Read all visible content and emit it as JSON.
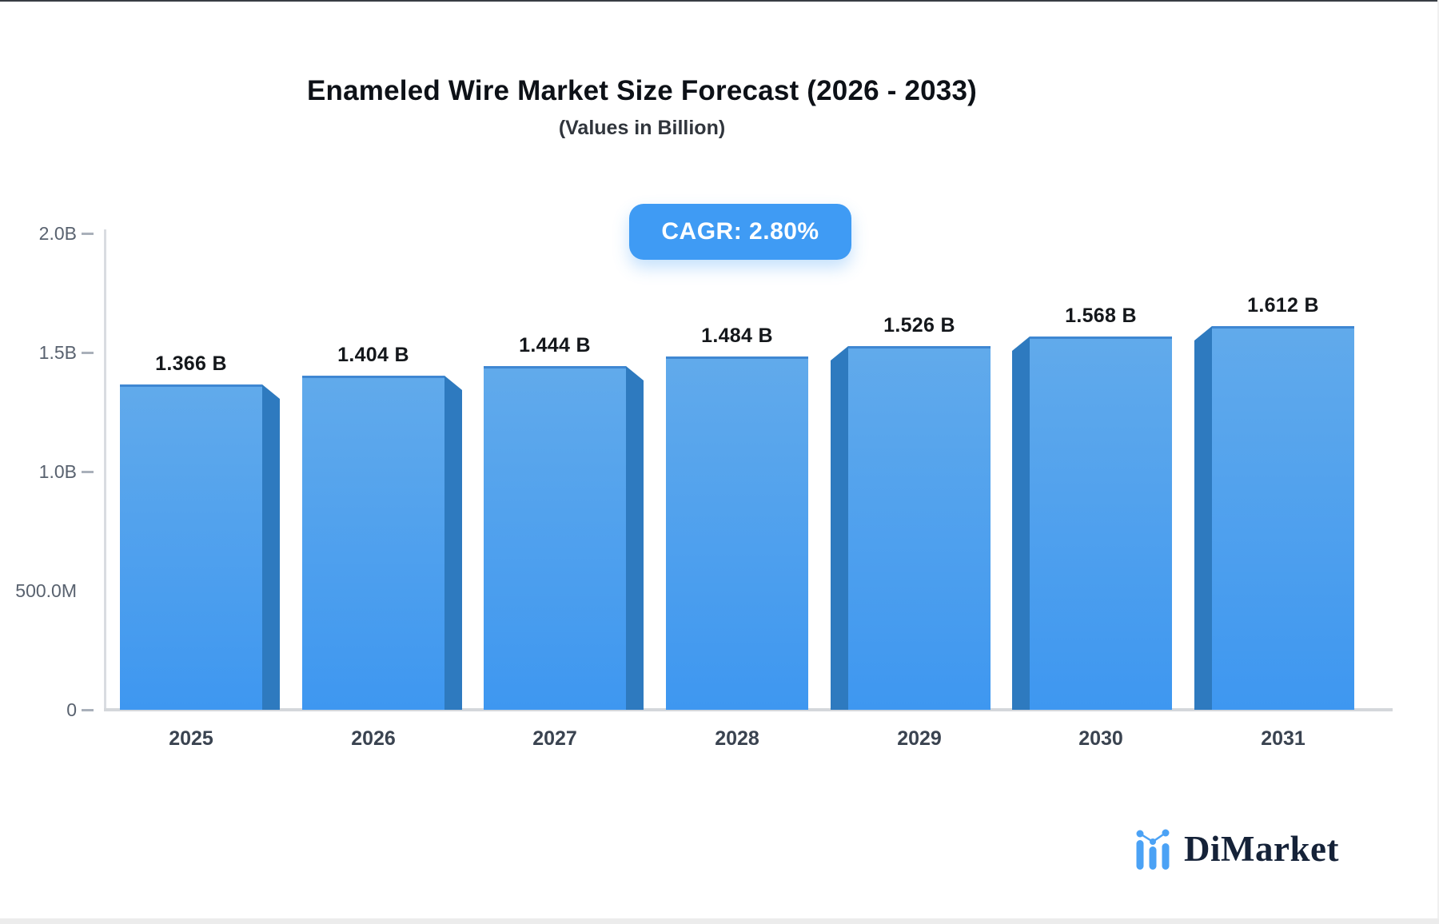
{
  "page": {
    "background": "#ffffff",
    "top_border_color": "#383d44",
    "right_border_color": "#f0f0f0",
    "bottom_strip_color": "#ececec"
  },
  "header": {
    "title": "Enameled Wire Market Size Forecast (2026 - 2033)",
    "subtitle": "(Values in Billion)"
  },
  "badge": {
    "label": "CAGR: 2.80%",
    "background": "#3f9bf4",
    "text_color": "#ffffff"
  },
  "chart_data": {
    "type": "bar",
    "title": "Enameled Wire Market Size Forecast (2026 - 2033)",
    "subtitle": "(Values in Billion)",
    "categories": [
      "2025",
      "2026",
      "2027",
      "2028",
      "2029",
      "2030",
      "2031"
    ],
    "values": [
      1.366,
      1.404,
      1.444,
      1.484,
      1.526,
      1.568,
      1.612
    ],
    "bar_labels": [
      "1.366 B",
      "1.404 B",
      "1.444 B",
      "1.484 B",
      "1.526 B",
      "1.568 B",
      "1.612 B"
    ],
    "unit": "Billion",
    "cagr": "2.80%",
    "ylim": [
      0,
      2.0
    ],
    "y_ticks": [
      {
        "label": "2.0B",
        "value": 2.0,
        "dash": true
      },
      {
        "label": "1.5B",
        "value": 1.5,
        "dash": true
      },
      {
        "label": "1.0B",
        "value": 1.0,
        "dash": true
      },
      {
        "label": "500.0M",
        "value": 0.5,
        "dash": false
      },
      {
        "label": "0",
        "value": 0.0,
        "dash": true
      }
    ],
    "grid": false,
    "legend": false,
    "bar_front_gradient_top": "#61aaeb",
    "bar_front_gradient_bottom": "#3e97f0",
    "bar_side_color": "#2e7abf",
    "bar_top_edge_color": "#3f87d2"
  },
  "logo": {
    "text": "DiMarket",
    "icon": "bar-chart-logo-icon",
    "icon_color": "#4ba2f5",
    "text_color": "#152238"
  }
}
